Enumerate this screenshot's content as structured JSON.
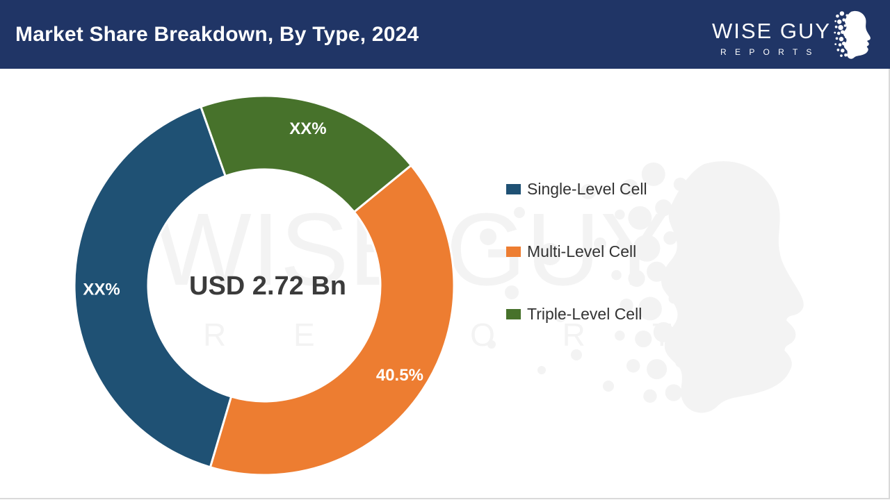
{
  "header": {
    "title": "Market Share Breakdown, By Type, 2024",
    "logo": {
      "line1": "WISE GUY",
      "line2": "R E P O R T S"
    }
  },
  "watermark": {
    "line1": "WISE GUY",
    "line2": "R E P O R T S"
  },
  "chart_data": {
    "type": "pie",
    "subtype": "donut",
    "title": "Market Share Breakdown, By Type, 2024",
    "center_label": "USD 2.72 Bn",
    "unit": "percent of market share",
    "start_angle_deg": 340.5,
    "direction": "counterclockwise",
    "inner_radius_ratio": 0.61,
    "legend_position": "right",
    "segments": [
      {
        "name": "Single-Level Cell",
        "value": 40.0,
        "display_label": "XX%",
        "color": "#1F5174"
      },
      {
        "name": "Multi-Level Cell",
        "value": 40.5,
        "display_label": "40.5%",
        "color": "#ED7D31"
      },
      {
        "name": "Triple-Level Cell",
        "value": 19.5,
        "display_label": "XX%",
        "color": "#47722B"
      }
    ]
  },
  "colors": {
    "header_bg": "#203566",
    "title_text": "#FFFFFF",
    "center_text": "#3B3B3B",
    "legend_text": "#333333",
    "segment_label_text": "#FFFFFF",
    "separator": "#FFFFFF",
    "watermark": "#F3F3F3",
    "frame_line": "#D9D9D9"
  }
}
